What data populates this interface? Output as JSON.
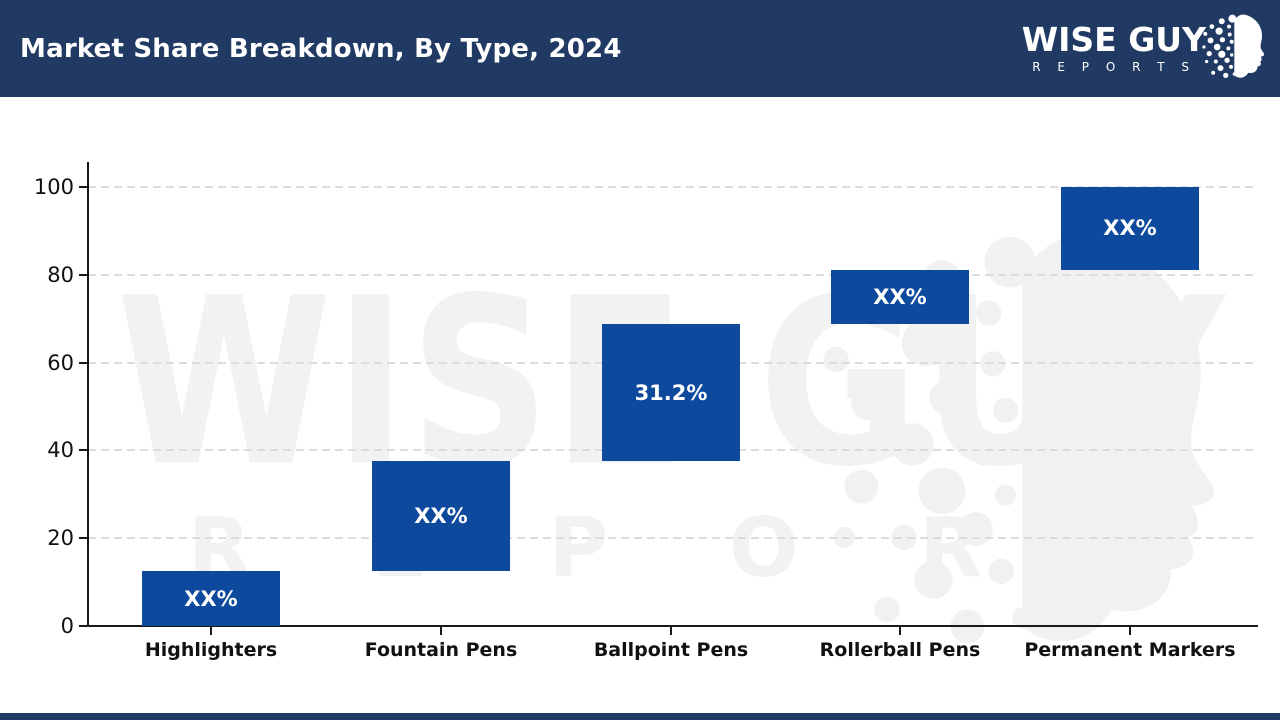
{
  "header": {
    "title": "Market Share Breakdown, By Type, 2024",
    "brand": {
      "name_line": "WISE GUY",
      "sub_line": "R E P O R T S"
    }
  },
  "watermark": {
    "name_line": "WISE GUY",
    "sub_line": "R E P O R T S"
  },
  "colors": {
    "header_bg": "#213A64",
    "footer_bg": "#213A64",
    "bar": "#0D4A9D",
    "bar_label": "#FFFFFF",
    "grid": "#DCDCDC",
    "axis": "#1A1A1A",
    "watermark": "#F2F2F2"
  },
  "chart_data": {
    "type": "bar",
    "variant": "waterfall",
    "title": "Market Share Breakdown, By Type, 2024",
    "categories": [
      "Highlighters",
      "Fountain Pens",
      "Ballpoint Pens",
      "Rollerball Pens",
      "Permanent Markers"
    ],
    "segments": [
      {
        "category": "Highlighters",
        "start": 0,
        "end": 12.5,
        "label": "XX%"
      },
      {
        "category": "Fountain Pens",
        "start": 12.5,
        "end": 37.5,
        "label": "XX%"
      },
      {
        "category": "Ballpoint Pens",
        "start": 37.5,
        "end": 68.7,
        "label": "31.2%",
        "value": 31.2
      },
      {
        "category": "Rollerball Pens",
        "start": 68.7,
        "end": 81.2,
        "label": "XX%"
      },
      {
        "category": "Permanent Markers",
        "start": 81.2,
        "end": 100,
        "label": "XX%"
      }
    ],
    "xlabel": "",
    "ylabel": "",
    "ylim": [
      0,
      100
    ],
    "yticks": [
      0,
      20,
      40,
      60,
      80,
      100
    ],
    "grid": "horizontal-dashed",
    "legend": "none"
  }
}
